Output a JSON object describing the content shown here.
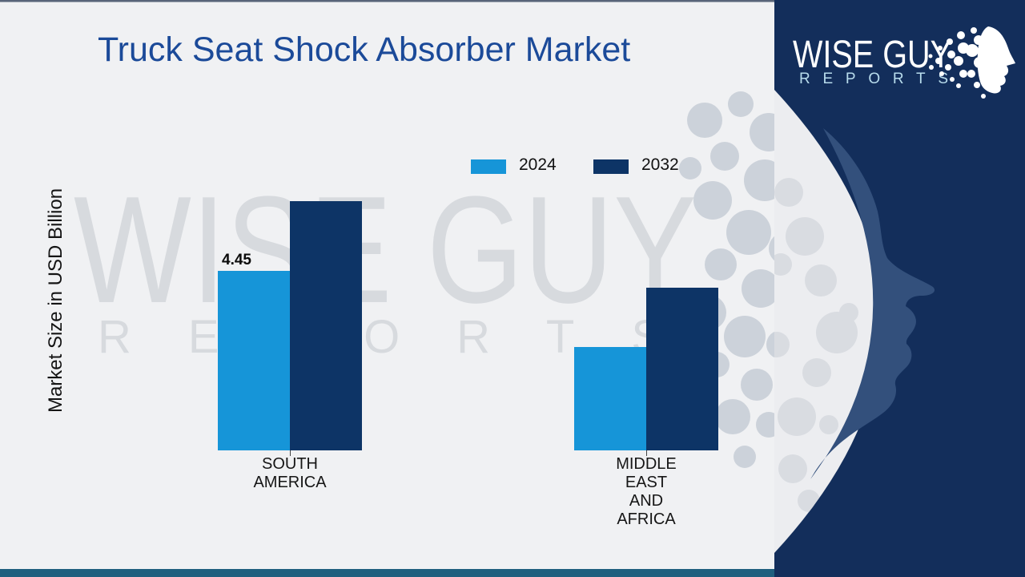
{
  "title": "Truck Seat Shock Absorber Market",
  "y_axis_label": "Market Size in USD Billion",
  "legend": {
    "items": [
      {
        "label": "2024",
        "color": "#1695d8"
      },
      {
        "label": "2032",
        "color": "#0d3466"
      }
    ]
  },
  "chart_data": {
    "type": "bar",
    "title": "Truck Seat Shock Absorber Market",
    "ylabel": "Market Size in USD Billion",
    "units": "USD Billion",
    "categories": [
      "SOUTH AMERICA",
      "MIDDLE EAST AND AFRICA"
    ],
    "category_display": [
      "SOUTH\nAMERICA",
      "MIDDLE\nEAST\nAND\nAFRICA"
    ],
    "series": [
      {
        "name": "2024",
        "color": "#1695d8",
        "values": [
          4.45,
          2.56
        ],
        "data_labels": [
          "4.45",
          ""
        ]
      },
      {
        "name": "2032",
        "color": "#0d3466",
        "values": [
          6.18,
          4.03
        ],
        "data_labels": [
          "",
          ""
        ]
      }
    ],
    "ylim": [
      0,
      7
    ],
    "grid": false,
    "legend_position": "top-center"
  },
  "watermark": {
    "line1": "WISE GUY",
    "line2": "REPORTS"
  },
  "logo": {
    "line1": "WISE GUY",
    "line2": "REPORTS"
  },
  "colors": {
    "background": "#f0f1f3",
    "panel": "#132e5b",
    "title": "#1b4a99",
    "bar_2024": "#1695d8",
    "bar_2032": "#0d3466",
    "footer_strip": "#1f5f7e",
    "face_silhouette": "#33507c",
    "skull_light": "#ecedf0",
    "blotch": "#d9dce1",
    "watermark_text": "#d7dade",
    "watermark_dots": "#ccd2da",
    "logo_text": "#ffffff",
    "logo_subtext": "#b8dcec"
  }
}
